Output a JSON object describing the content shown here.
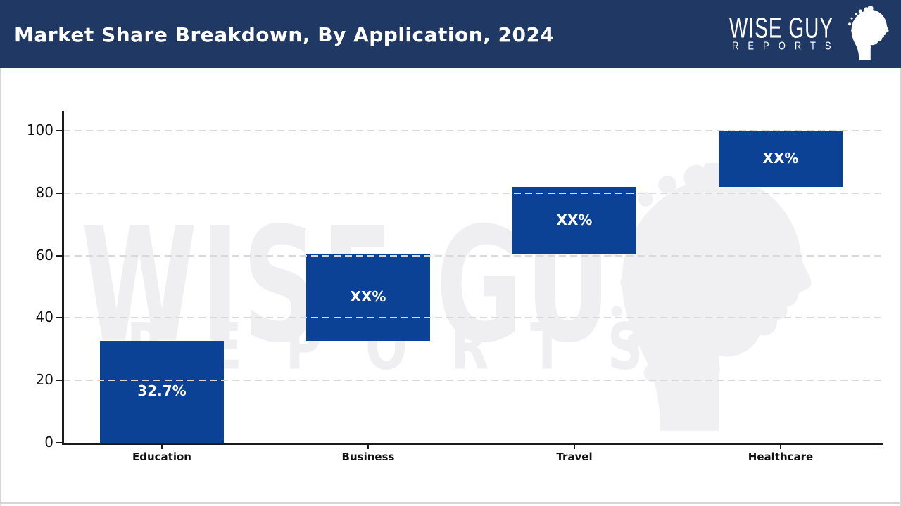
{
  "page": {
    "background": "#ffffff",
    "frame_color": "#d6d6d6"
  },
  "header": {
    "title": "Market Share Breakdown, By Application, 2024",
    "background": "#1f3864",
    "logo": {
      "wordmark": "WISE GUY",
      "sub": "REPORTS"
    }
  },
  "watermark": {
    "wordmark": "WISE GUY",
    "sub": "REPORTS"
  },
  "chart_data": {
    "type": "bar",
    "variant": "waterfall",
    "title": "Market Share Breakdown, By Application, 2024",
    "categories": [
      "Education",
      "Business",
      "Travel",
      "Healthcare"
    ],
    "segments": [
      {
        "category": "Education",
        "start": 0,
        "end": 32.7,
        "label": "32.7%"
      },
      {
        "category": "Business",
        "start": 32.7,
        "end": 60.4,
        "label": "XX%"
      },
      {
        "category": "Travel",
        "start": 60.4,
        "end": 82.0,
        "label": "XX%"
      },
      {
        "category": "Healthcare",
        "start": 82.0,
        "end": 100,
        "label": "XX%"
      }
    ],
    "yticks": [
      0,
      20,
      40,
      60,
      80,
      100
    ],
    "ylim": [
      0,
      107
    ],
    "grid": true,
    "gridline_style": "dashed",
    "bar_color": "#0b4296",
    "value_label_color": "#ffffff",
    "legend": null
  }
}
